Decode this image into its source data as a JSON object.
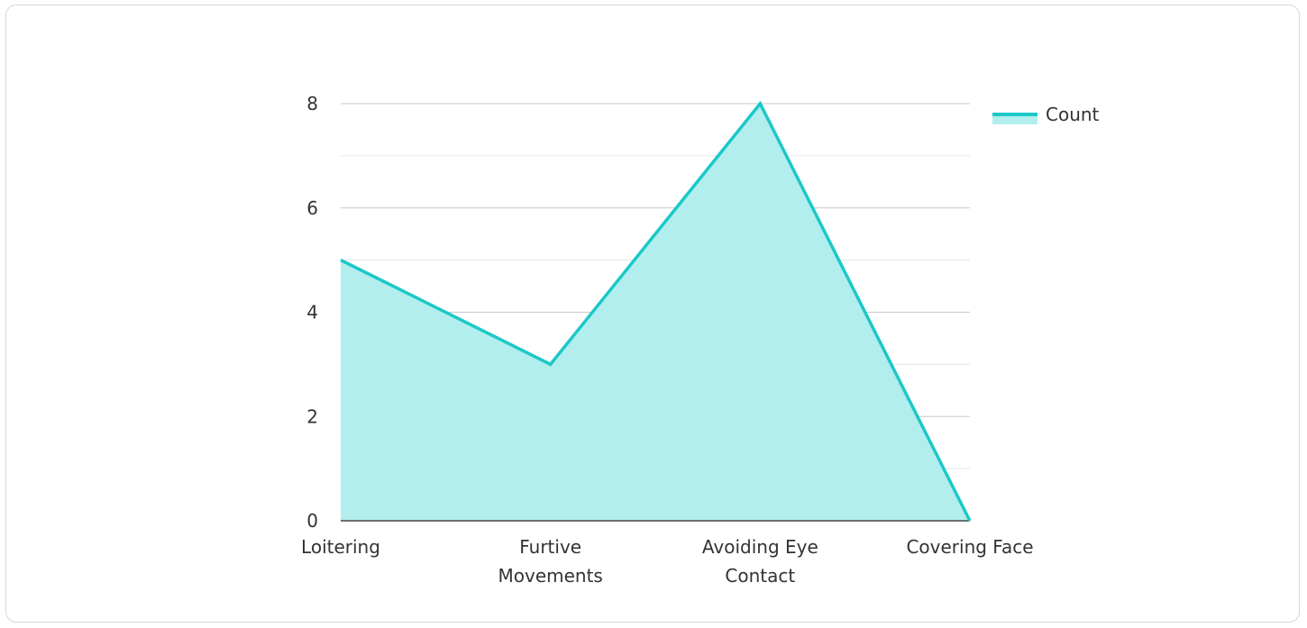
{
  "chart_data": {
    "type": "area",
    "categories": [
      [
        "Loitering"
      ],
      [
        "Furtive",
        "Movements"
      ],
      [
        "Avoiding Eye",
        "Contact"
      ],
      [
        "Covering Face"
      ]
    ],
    "series": [
      {
        "name": "Count",
        "values": [
          5,
          3,
          8,
          0
        ]
      }
    ],
    "y_ticks": [
      "0",
      "2",
      "4",
      "6",
      "8"
    ],
    "ylim": [
      0,
      8
    ],
    "minor_grid_step": 1,
    "legend": {
      "position": "top-right",
      "label": "Count"
    },
    "colors": {
      "line": "#1cc8c8",
      "fill": "#b2eeee",
      "grid_major": "#c8c8c8",
      "grid_minor": "#e6e6e6",
      "axis": "#444444"
    }
  }
}
